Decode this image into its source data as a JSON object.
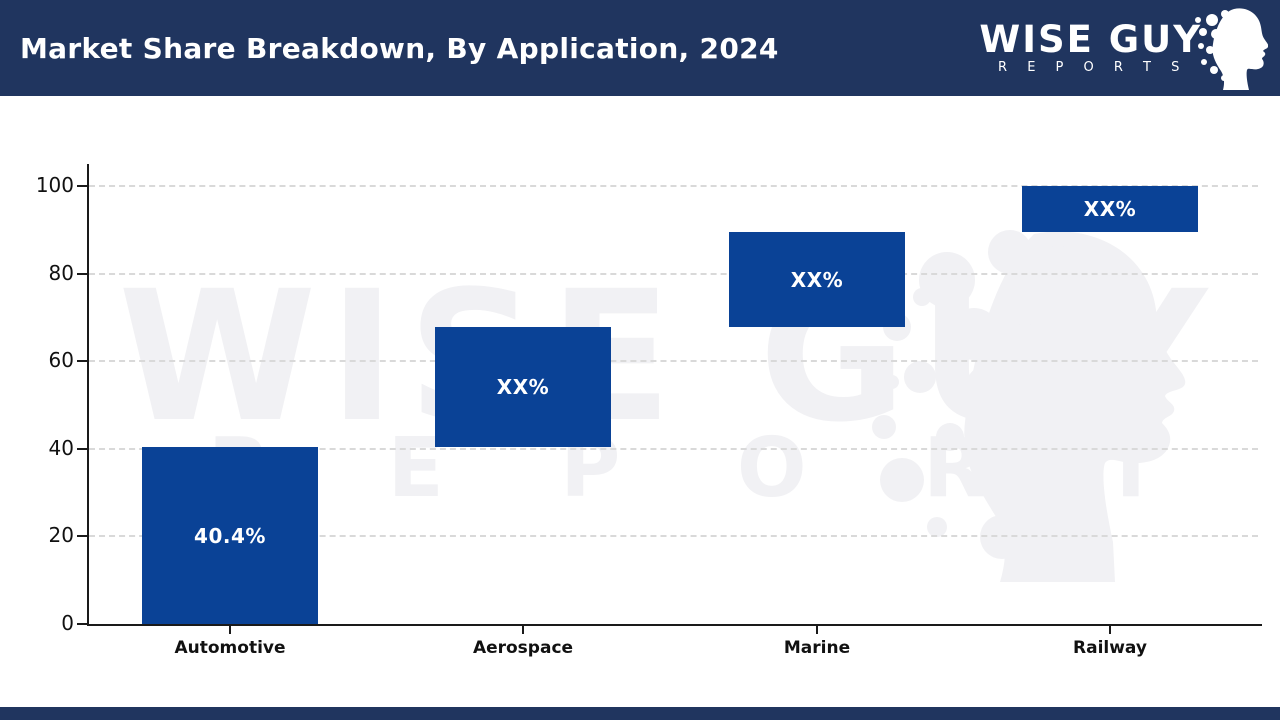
{
  "header": {
    "title": "Market Share Breakdown, By Application, 2024",
    "logo": {
      "line1": "WISE GUY",
      "line2": "R E P O R T S"
    }
  },
  "watermark": {
    "line1": "WISE GUY",
    "line2": "R E P O R T S"
  },
  "colors": {
    "header_bg": "#20355f",
    "footer_bg": "#20355f",
    "bar": "#0a4296",
    "bar_label": "#ffffff",
    "gridline": "#d9d9d9",
    "axis": "#1a1a1a",
    "watermark": "#f1f1f4",
    "title_text": "#ffffff"
  },
  "chart_data": {
    "type": "bar",
    "subtype": "waterfall-breakdown",
    "title": "Market Share Breakdown, By Application, 2024",
    "categories": [
      "Automotive",
      "Aerospace",
      "Marine",
      "Railway"
    ],
    "segments": [
      {
        "category": "Automotive",
        "start": 0,
        "end": 40.4,
        "label": "40.4%"
      },
      {
        "category": "Aerospace",
        "start": 40.4,
        "end": 67.8,
        "label": "XX%"
      },
      {
        "category": "Marine",
        "start": 67.8,
        "end": 89.5,
        "label": "XX%"
      },
      {
        "category": "Railway",
        "start": 89.5,
        "end": 100,
        "label": "XX%"
      }
    ],
    "yticks": [
      0,
      20,
      40,
      60,
      80,
      100
    ],
    "ylim": [
      0,
      105
    ],
    "xlabel": "",
    "ylabel": "",
    "grid": "horizontal-dashed",
    "legend": "none",
    "bar_color": "#0a4296"
  }
}
